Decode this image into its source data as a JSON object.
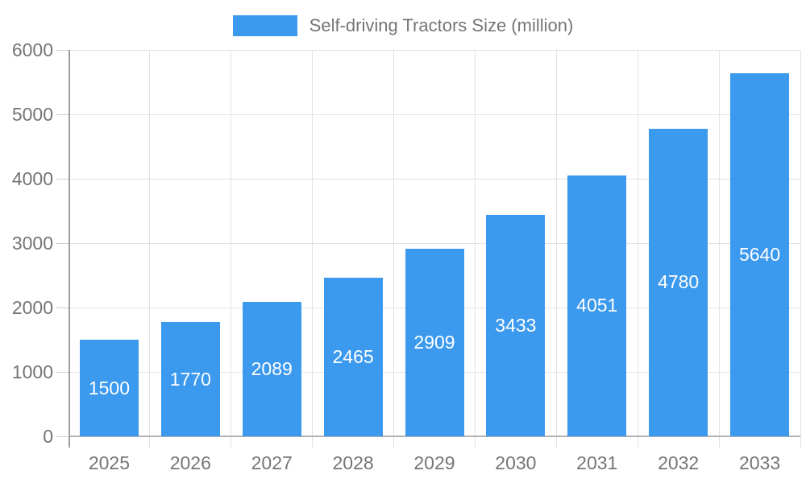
{
  "chart_data": {
    "type": "bar",
    "title": "Self-driving Tractors Size (million)",
    "legend": {
      "label": "Self-driving Tractors Size (million)",
      "position": "top-center"
    },
    "categories": [
      "2025",
      "2026",
      "2027",
      "2028",
      "2029",
      "2030",
      "2031",
      "2032",
      "2033"
    ],
    "series": [
      {
        "name": "Self-driving Tractors Size (million)",
        "values": [
          1500,
          1770,
          2089,
          2465,
          2909,
          3433,
          4051,
          4780,
          5640
        ]
      }
    ],
    "value_labels": [
      "1500",
      "1770",
      "2089",
      "2465",
      "2909",
      "3433",
      "4051",
      "4780",
      "5640"
    ],
    "xlabel": "",
    "ylabel": "",
    "ylim": [
      0,
      6000
    ],
    "yticks": [
      0,
      1000,
      2000,
      3000,
      4000,
      5000,
      6000
    ],
    "ytick_labels": [
      "0",
      "1000",
      "2000",
      "3000",
      "4000",
      "5000",
      "6000"
    ],
    "grid": true,
    "colors": {
      "bar": "#3b99ee",
      "value_label": "#ffffff",
      "axis_text": "#757575",
      "gridline": "#e2e2e2",
      "axis_line": "#9e9e9e",
      "baseline": "#b3b3b3",
      "background": "#ffffff"
    }
  }
}
